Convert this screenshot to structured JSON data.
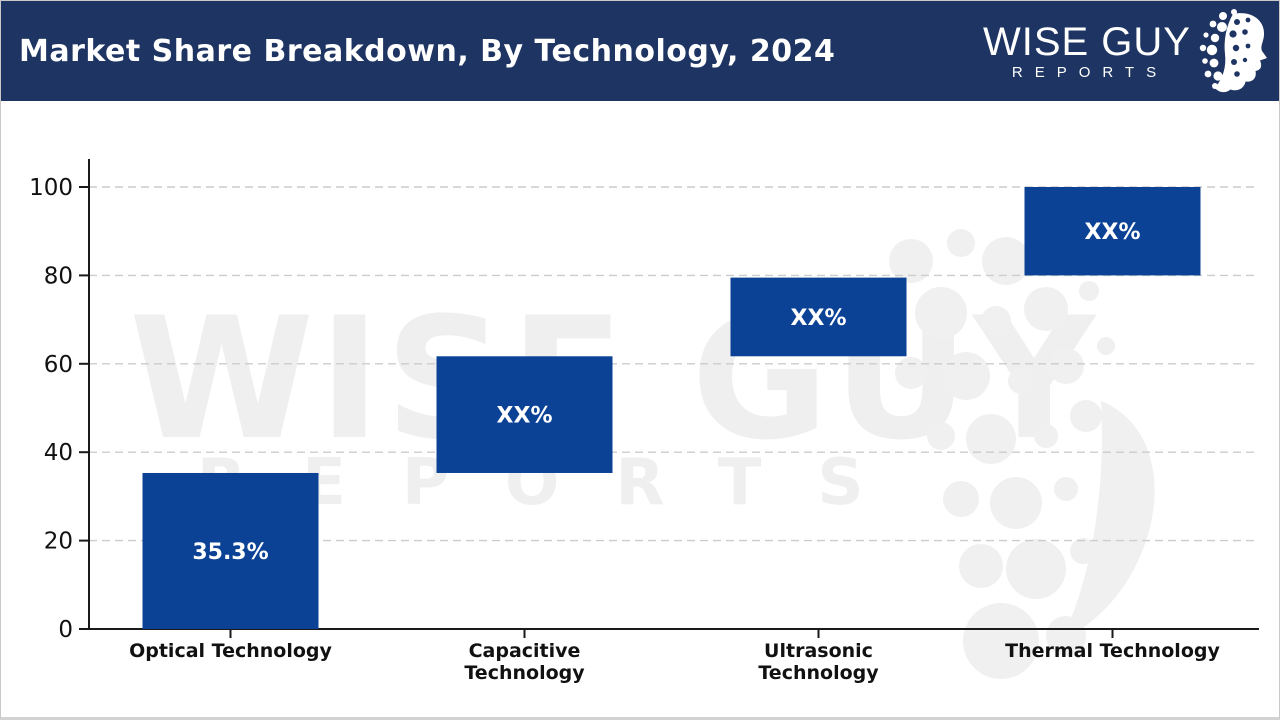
{
  "header": {
    "title": "Market Share Breakdown, By Technology, 2024",
    "logo": {
      "name": "WISE GUY",
      "sub": "REPORTS"
    }
  },
  "watermark": {
    "line1": "WISE GUY",
    "line2": "REPORTS"
  },
  "chart_data": {
    "type": "bar",
    "subtype": "waterfall",
    "title": "Market Share Breakdown, By Technology, 2024",
    "categories": [
      "Optical Technology",
      "Capacitive Technology",
      "Ultrasonic Technology",
      "Thermal Technology"
    ],
    "category_label_lines": [
      [
        "Optical Technology"
      ],
      [
        "Capacitive",
        "Technology"
      ],
      [
        "Ultrasonic",
        "Technology"
      ],
      [
        "Thermal Technology"
      ]
    ],
    "segments": [
      {
        "category": "Optical Technology",
        "start": 0,
        "end": 35.3,
        "label": "35.3%"
      },
      {
        "category": "Capacitive Technology",
        "start": 35.3,
        "end": 61.7,
        "label": "XX%"
      },
      {
        "category": "Ultrasonic Technology",
        "start": 61.7,
        "end": 79.5,
        "label": "XX%"
      },
      {
        "category": "Thermal Technology",
        "start": 80,
        "end": 100,
        "label": "XX%"
      }
    ],
    "ylim": [
      0,
      100
    ],
    "yticks": [
      0,
      20,
      40,
      60,
      80,
      100
    ],
    "grid": "horizontal-dashed",
    "legend": "none",
    "colors": {
      "bar": "#0b4295",
      "bar_label": "#ffffff",
      "axis": "#1a1a1a",
      "grid": "#cccccc",
      "tick_label": "#111111",
      "header_bg": "#1e3462",
      "header_text": "#ffffff",
      "watermark": "#efefef"
    }
  }
}
